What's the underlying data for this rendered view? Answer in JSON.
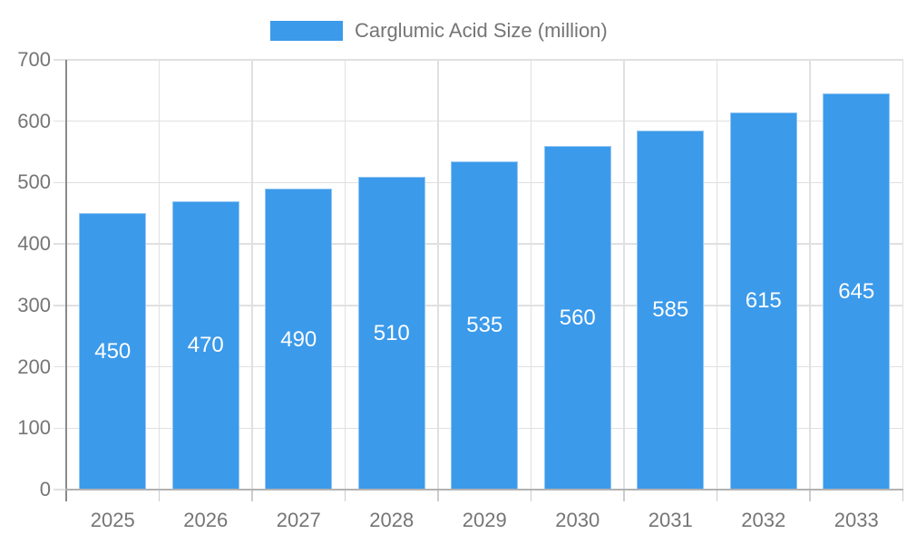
{
  "chart_data": {
    "type": "bar",
    "title": "",
    "legend": {
      "label": "Carglumic Acid Size (million)",
      "position": "top"
    },
    "categories": [
      "2025",
      "2026",
      "2027",
      "2028",
      "2029",
      "2030",
      "2031",
      "2032",
      "2033"
    ],
    "series": [
      {
        "name": "Carglumic Acid Size (million)",
        "values": [
          450,
          470,
          490,
          510,
          535,
          560,
          585,
          615,
          645
        ]
      }
    ],
    "bar_value_labels": [
      450,
      470,
      490,
      510,
      535,
      560,
      585,
      615,
      645
    ],
    "xlabel": "",
    "ylabel": "",
    "ylim": [
      0,
      700
    ],
    "yticks": [
      0,
      100,
      200,
      300,
      400,
      500,
      600,
      700
    ],
    "grid": true,
    "colors": {
      "bar": "#3b9aea",
      "bar_label": "#ffffff",
      "axis_text": "#757575",
      "legend_text": "#757575",
      "gridline": "#e0e0e0",
      "y_axis_line": "#8a8a8a",
      "x_axis_line": "#b2b2b2",
      "tick": "#cccccc",
      "background": "#ffffff"
    }
  }
}
